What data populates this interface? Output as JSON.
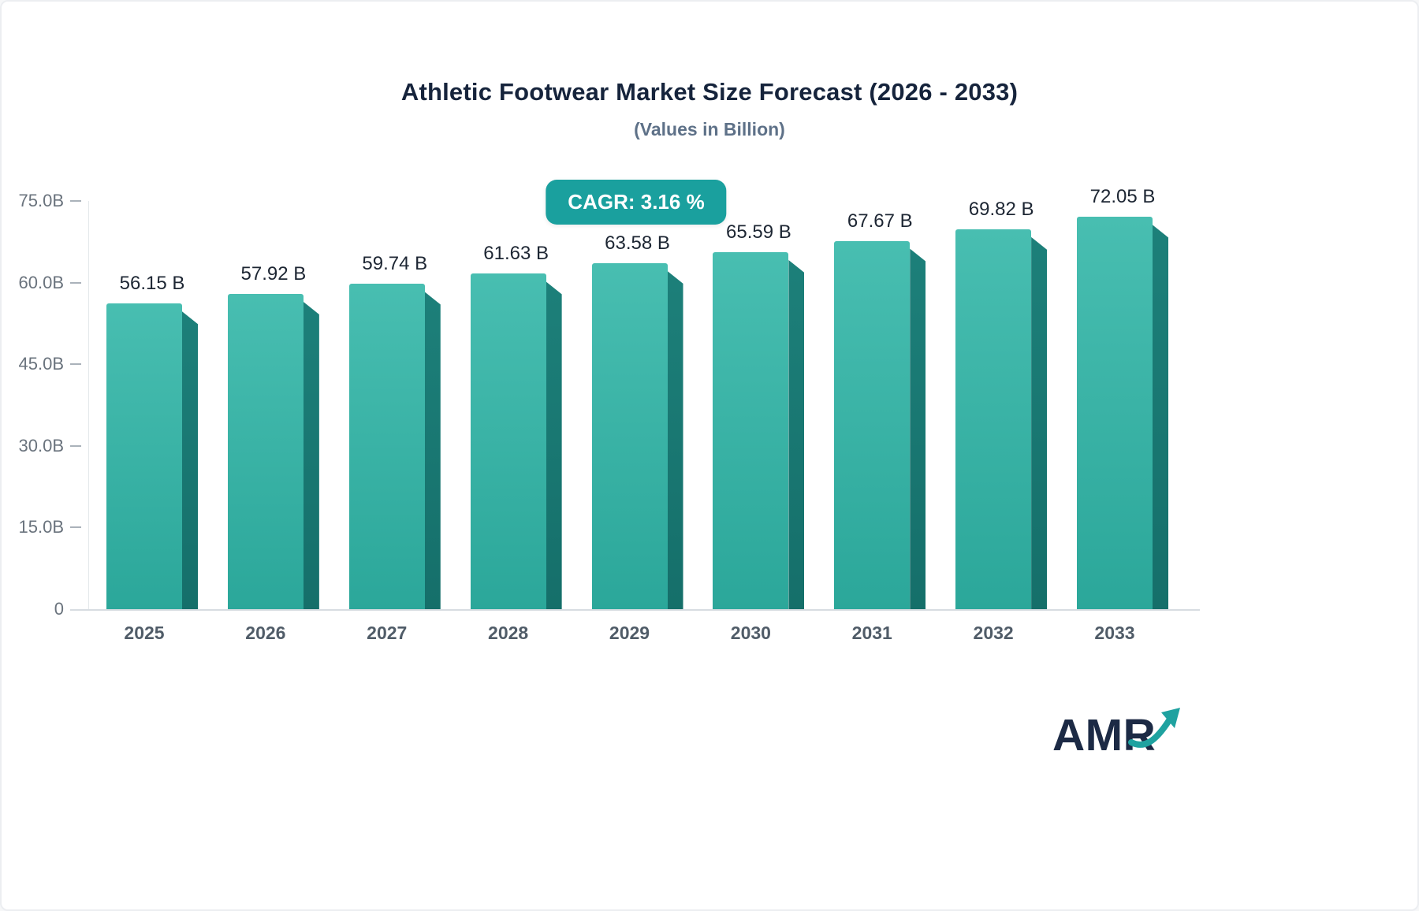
{
  "title": "Athletic Footwear Market Size Forecast (2026 - 2033)",
  "subtitle": "(Values in Billion)",
  "cagr_label": "CAGR: 3.16 %",
  "logo_text": "AMR",
  "colors": {
    "accent": "#1aa09e",
    "title": "#16243c",
    "bar_top": "#48beb1",
    "bar_bottom": "#2ba79a",
    "bar_side": "#1d807a",
    "bar_side2": "#156f6a",
    "arrow": "#1fa2a0"
  },
  "chart_data": {
    "type": "bar",
    "title": "Athletic Footwear Market Size Forecast (2026 - 2033)",
    "subtitle": "(Values in Billion)",
    "xlabel": "",
    "ylabel": "",
    "categories": [
      "2025",
      "2026",
      "2027",
      "2028",
      "2029",
      "2030",
      "2031",
      "2032",
      "2033"
    ],
    "values": [
      56.15,
      57.92,
      59.74,
      61.63,
      63.58,
      65.59,
      67.67,
      69.82,
      72.05
    ],
    "value_labels": [
      "56.15 B",
      "57.92 B",
      "59.74 B",
      "61.63 B",
      "63.58 B",
      "65.59 B",
      "67.67 B",
      "69.82 B",
      "72.05 B"
    ],
    "ylim": [
      0,
      75
    ],
    "grid": false,
    "legend": "none",
    "annotation": "CAGR: 3.16 %",
    "yticks": [
      {
        "label": "75.0B",
        "value": 75,
        "dash": true
      },
      {
        "label": "60.0B",
        "value": 60,
        "dash": true
      },
      {
        "label": "45.0B",
        "value": 45,
        "dash": true
      },
      {
        "label": "30.0B",
        "value": 30,
        "dash": true
      },
      {
        "label": "15.0B",
        "value": 15,
        "dash": true
      },
      {
        "label": "0",
        "value": 0,
        "dash": false
      }
    ]
  }
}
